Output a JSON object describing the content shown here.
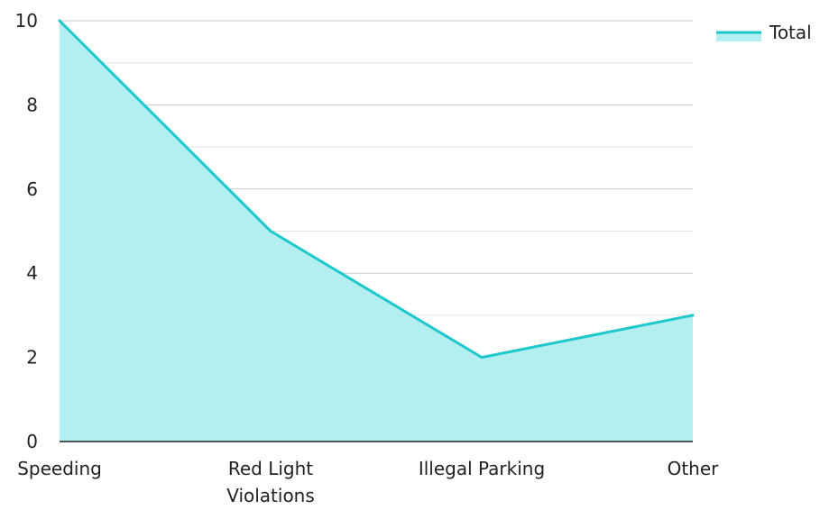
{
  "chart_data": {
    "type": "area",
    "title": "",
    "xlabel": "",
    "ylabel": "",
    "categories": [
      "Speeding",
      "Red Light Violations",
      "Illegal Parking",
      "Other"
    ],
    "category_label_lines": [
      [
        "Speeding"
      ],
      [
        "Red Light",
        "Violations"
      ],
      [
        "Illegal Parking"
      ],
      [
        "Other"
      ]
    ],
    "series": [
      {
        "name": "Total",
        "values": [
          10,
          5,
          2,
          3
        ],
        "line_color": "#1dc8cc",
        "fill_color": "#b3efee"
      }
    ],
    "ylim": [
      0,
      10
    ],
    "y_ticks": [
      0,
      2,
      4,
      6,
      8,
      10
    ],
    "y_minor_ticks": [
      1,
      3,
      5,
      7,
      9
    ],
    "grid": true,
    "grid_color": "#c8c8c8",
    "minor_grid_color": "#e4e4e4",
    "axis_color": "#222222",
    "legend_position": "top-right"
  }
}
